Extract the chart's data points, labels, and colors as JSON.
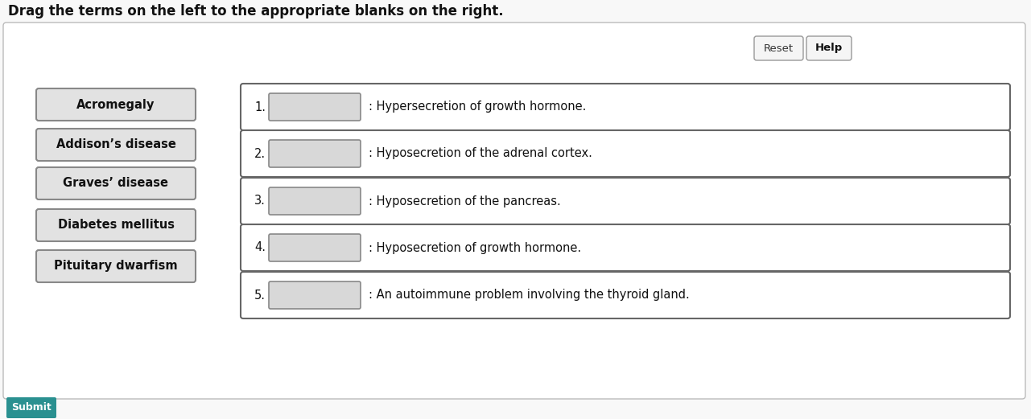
{
  "title": "Drag the terms on the left to the appropriate blanks on the right.",
  "title_fontsize": 12,
  "bg_color": "#f8f8f8",
  "outer_box_color": "#bbbbbb",
  "outer_box_bg": "#ffffff",
  "left_terms": [
    "Acromegaly",
    "Addison’s disease",
    "Graves’ disease",
    "Diabetes mellitus",
    "Pituitary dwarfism"
  ],
  "left_box_bg": "#e2e2e2",
  "left_box_edge": "#888888",
  "right_items": [
    {
      "num": "1.",
      "text": ": Hypersecretion of growth hormone."
    },
    {
      "num": "2.",
      "text": ": Hyposecretion of the adrenal cortex."
    },
    {
      "num": "3.",
      "text": ": Hyposecretion of the pancreas."
    },
    {
      "num": "4.",
      "text": ": Hyposecretion of growth hormone."
    },
    {
      "num": "5.",
      "text": ": An autoimmune problem involving the thyroid gland."
    }
  ],
  "blank_box_bg": "#d8d8d8",
  "blank_box_edge": "#888888",
  "right_outer_bg": "#ffffff",
  "right_outer_edge": "#666666",
  "button_reset_text": "Reset",
  "button_help_text": "Help",
  "button_bg": "#f5f5f5",
  "button_edge": "#999999",
  "font_family": "DejaVu Sans",
  "term_fontsize": 10.5,
  "item_fontsize": 10.5,
  "num_fontsize": 10.5,
  "teal_button_bg": "#2a9090",
  "teal_button_text": "Submit",
  "teal_button_text_color": "#ffffff"
}
